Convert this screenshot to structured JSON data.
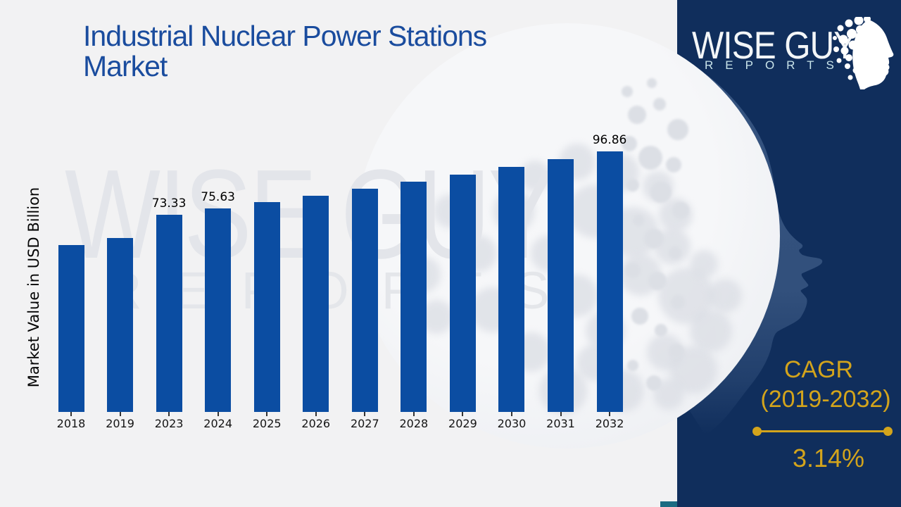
{
  "header": {
    "title": "Industrial Nuclear Power Stations Market"
  },
  "chart_data": {
    "type": "bar",
    "title": "Industrial Nuclear Power Stations Market",
    "xlabel": "",
    "ylabel": "Market Value in USD Billion",
    "categories": [
      "2018",
      "2019",
      "2023",
      "2024",
      "2025",
      "2026",
      "2027",
      "2028",
      "2029",
      "2030",
      "2031",
      "2032"
    ],
    "values": [
      62.0,
      64.8,
      73.33,
      75.63,
      78.01,
      80.46,
      82.99,
      85.59,
      88.28,
      91.05,
      93.91,
      96.86
    ],
    "bar_labels": [
      "",
      "",
      "73.33",
      "75.63",
      "",
      "",
      "",
      "",
      "",
      "",
      "",
      "96.86"
    ],
    "ylim": [
      0,
      100
    ],
    "grid": false,
    "legend": null
  },
  "watermark": {
    "brand": "WISE GUY",
    "sub": "REPORTS"
  },
  "logo": {
    "brand": "WISE GUY",
    "sub": "REPORTS"
  },
  "cagr": {
    "label": "CAGR",
    "range": "(2019-2032)",
    "value": "3.14%"
  },
  "colors": {
    "background": "#f2f2f3",
    "panel_navy": "#102e5c",
    "bar_blue": "#0b4da2",
    "title_blue": "#1a4c9e",
    "accent_gold": "#d3a41c",
    "teal_accent": "#1c6b82"
  }
}
